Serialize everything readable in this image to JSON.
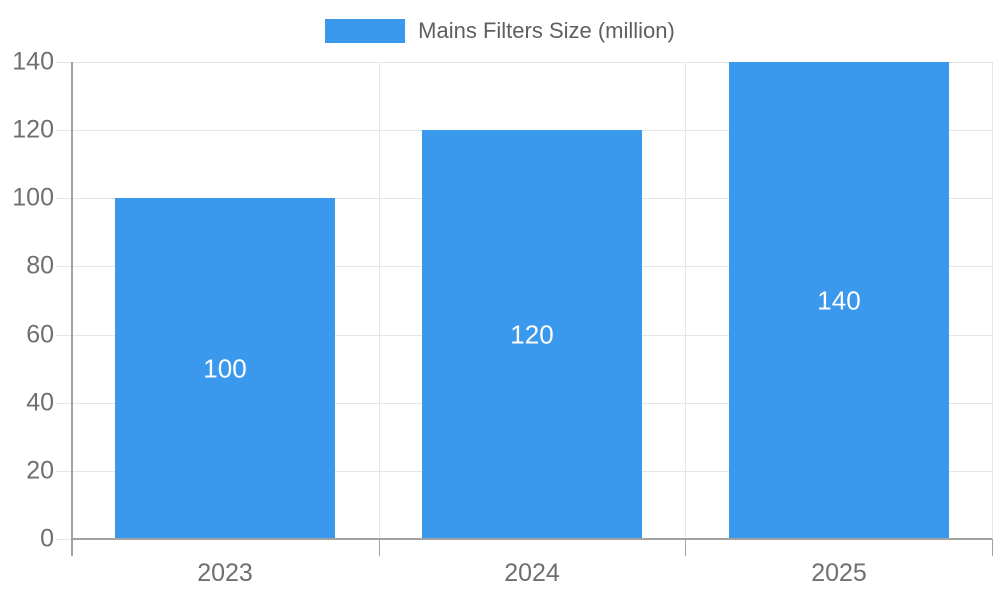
{
  "colors": {
    "bar": "#3A99EC",
    "grid": "#e6e6e6",
    "axis": "#a2a2a2",
    "tick_label": "#6f6f6f",
    "legend_text": "#5f5f5f",
    "bar_label": "#ffffff"
  },
  "legend": {
    "label": "Mains Filters Size (million)"
  },
  "chart_data": {
    "type": "bar",
    "title": "",
    "xlabel": "",
    "ylabel": "",
    "categories": [
      "2023",
      "2024",
      "2025"
    ],
    "series": [
      {
        "name": "Mains Filters Size (million)",
        "values": [
          100,
          120,
          140
        ],
        "data_labels": [
          "100",
          "120",
          "140"
        ]
      }
    ],
    "ylim": [
      0,
      140
    ],
    "yticks": [
      0,
      20,
      40,
      60,
      80,
      100,
      120,
      140
    ],
    "ytick_labels": [
      "0",
      "20",
      "40",
      "60",
      "80",
      "100",
      "120",
      "140"
    ],
    "grid": true,
    "legend_position": "top",
    "bar_label_position": "center-inside"
  }
}
